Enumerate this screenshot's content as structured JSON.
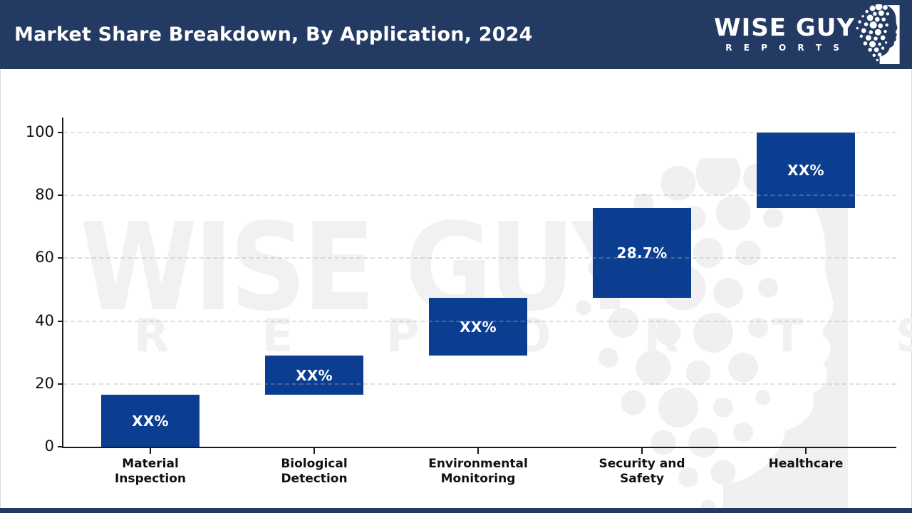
{
  "header": {
    "title": "Market Share Breakdown, By Application, 2024",
    "logo": {
      "brand_line1": "WISE GUY",
      "brand_line2": "R E P O R T S"
    }
  },
  "watermark": {
    "line1": "WISE GUY",
    "line2": "R E P O R T S"
  },
  "chart_data": {
    "type": "bar",
    "subtype": "waterfall",
    "title": "Market Share Breakdown, By Application, 2024",
    "categories": [
      "Material Inspection",
      "Biological Detection",
      "Environmental Monitoring",
      "Security and Safety",
      "Healthcare"
    ],
    "category_label_lines": [
      "Material\nInspection",
      "Biological\nDetection",
      "Environmental\nMonitoring",
      "Security and\nSafety",
      "Healthcare"
    ],
    "segments": [
      {
        "category": "Material Inspection",
        "start": 0,
        "end": 16.5,
        "label": "XX%"
      },
      {
        "category": "Biological Detection",
        "start": 16.5,
        "end": 29.0,
        "label": "XX%"
      },
      {
        "category": "Environmental Monitoring",
        "start": 29.0,
        "end": 47.3,
        "label": "XX%"
      },
      {
        "category": "Security and Safety",
        "start": 47.3,
        "end": 76.0,
        "label": "28.7%",
        "value": 28.7
      },
      {
        "category": "Healthcare",
        "start": 76.0,
        "end": 100.0,
        "label": "XX%"
      }
    ],
    "xlabel": "",
    "ylabel": "",
    "ylim": [
      0,
      100
    ],
    "yticks": [
      0,
      20,
      40,
      60,
      80,
      100
    ],
    "grid": "horizontal dashed",
    "legend": null,
    "colors": {
      "bar": "#0b3e91",
      "bar_label": "#ffffff",
      "header_bar": "#233a63",
      "grid": "#d9d9d9",
      "axis": "#1a1a1a",
      "watermark": "#f1f1f4"
    }
  }
}
